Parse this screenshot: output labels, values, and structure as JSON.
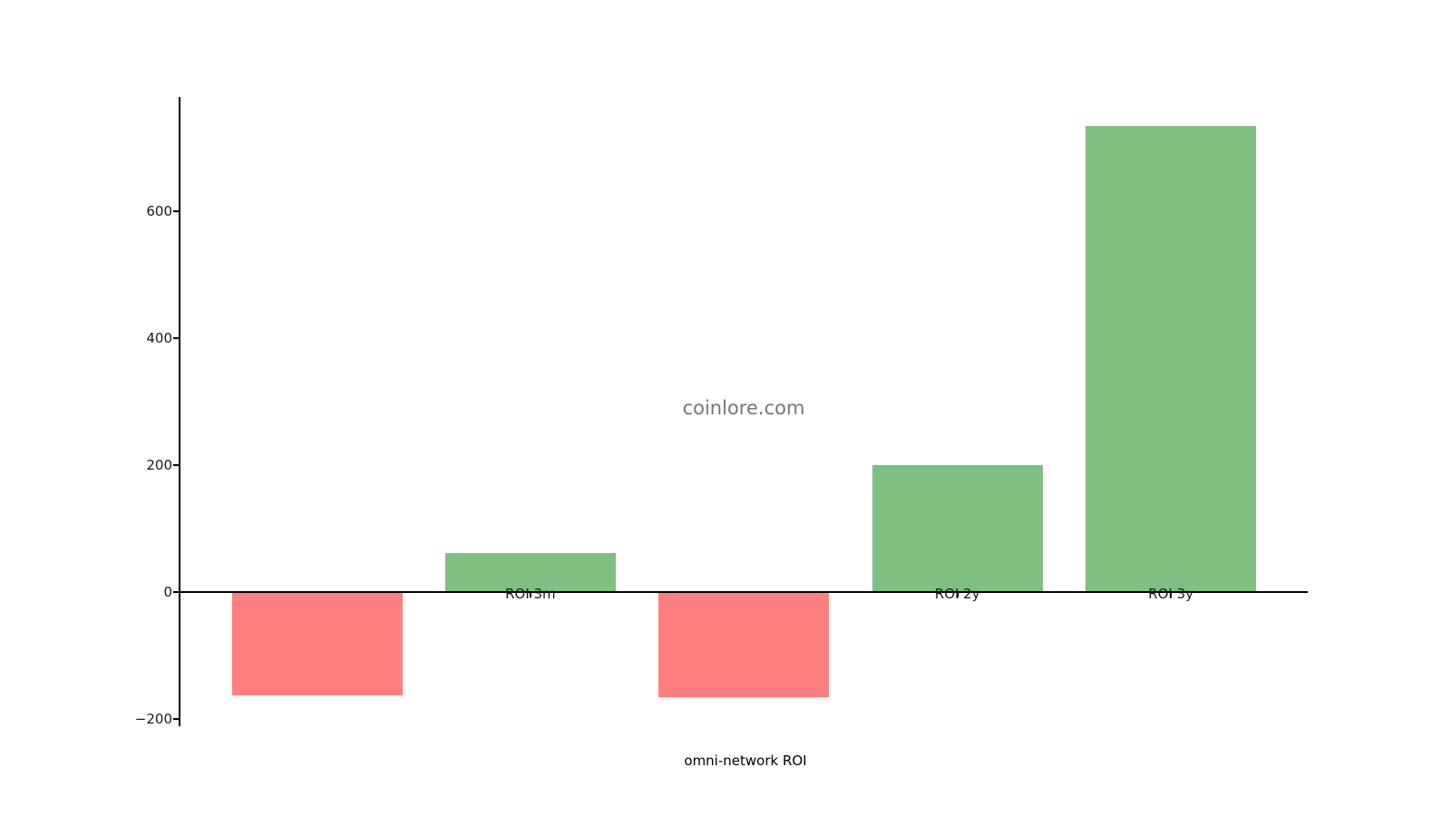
{
  "chart_data": {
    "type": "bar",
    "watermark": "coinlore.com",
    "xlabel": "omni-network ROI",
    "categories": [
      "",
      "ROI 3m",
      "",
      "ROI 2y",
      "ROI 3y"
    ],
    "values": [
      -164,
      61,
      -166,
      199,
      734
    ],
    "bar_colors": [
      "#ff7f7f",
      "#7fbf7f",
      "#ff7f7f",
      "#7fbf7f",
      "#7fbf7f"
    ],
    "positive_color": "#7fbf7f",
    "negative_color": "#ff7f7f",
    "yticks": [
      -200,
      0,
      200,
      400,
      600
    ],
    "ytick_labels": [
      "−200",
      "0",
      "200",
      "400",
      "600"
    ],
    "ylim": [
      -211,
      780
    ],
    "grid": false,
    "axis_color": "#000000",
    "tick_label_color": "#1a1a1a",
    "watermark_color": "#777777"
  }
}
